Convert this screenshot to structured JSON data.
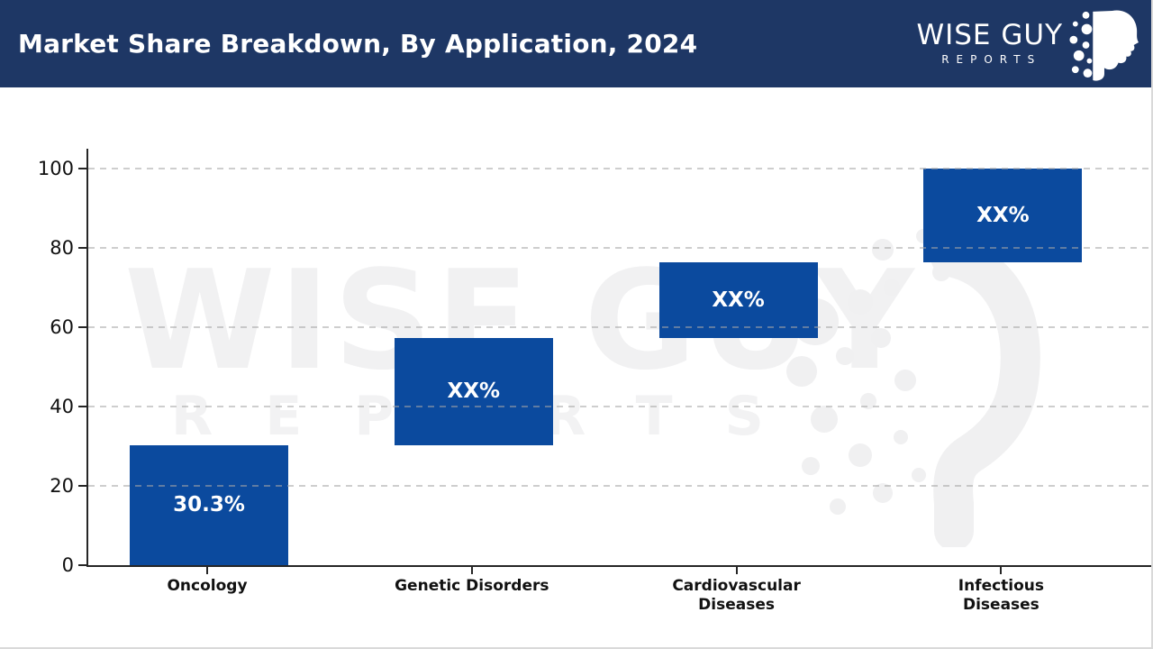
{
  "header": {
    "title": "Market Share Breakdown, By Application, 2024"
  },
  "logo": {
    "wordmark": "WISE GUY",
    "subtitle": "REPORTS",
    "icon": "dotted-face-profile"
  },
  "watermark": {
    "wordmark": "WISE GUY",
    "subtitle": "REPORTS",
    "pattern": "dotted-head-silhouette"
  },
  "colors": {
    "header_bg": "#1e3765",
    "bar": "#0b4a9e",
    "axis": "#262626",
    "grid": "#a8a8a8",
    "bar_label_text": "#ffffff",
    "watermark": "#f1f1f2",
    "page_border": "#d9d9d9"
  },
  "chart_data": {
    "type": "bar",
    "subtype": "floating-range-bars",
    "title": "Market Share Breakdown, By Application, 2024",
    "categories": [
      "Oncology",
      "Genetic Disorders",
      "Cardiovascular\nDiseases",
      "Infectious\nDiseases"
    ],
    "bars": [
      {
        "category": "Oncology",
        "start": 0,
        "end": 30.3,
        "label": "30.3%"
      },
      {
        "category": "Genetic Disorders",
        "start": 30.3,
        "end": 57.3,
        "label": "XX%"
      },
      {
        "category": "Cardiovascular Diseases",
        "start": 57.3,
        "end": 76.4,
        "label": "XX%"
      },
      {
        "category": "Infectious Diseases",
        "start": 76.4,
        "end": 100,
        "label": "XX%"
      }
    ],
    "xlabel": "",
    "ylabel": "",
    "ylim": [
      0,
      105
    ],
    "yticks": [
      0,
      20,
      40,
      60,
      80,
      100
    ],
    "grid": "dashed horizontal, drawn above bars",
    "legend": "none"
  }
}
